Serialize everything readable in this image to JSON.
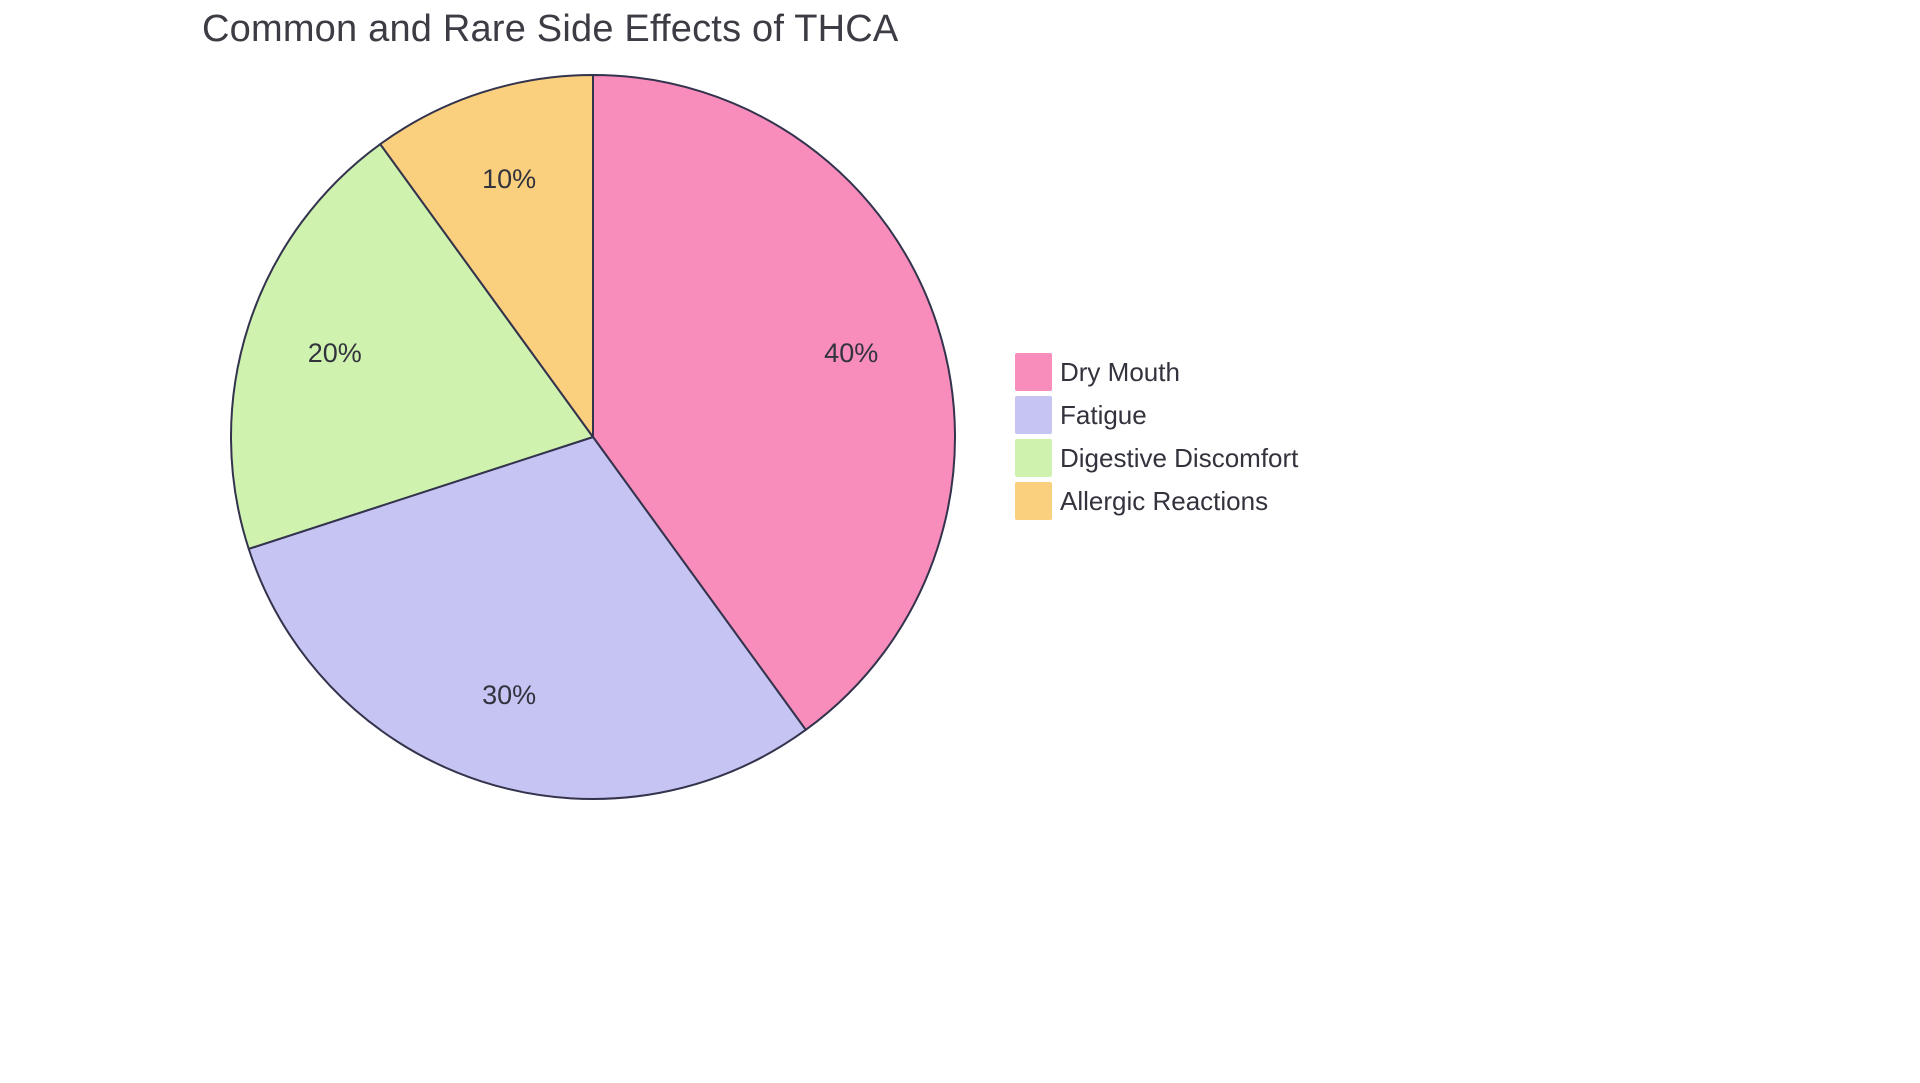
{
  "chart_data": {
    "type": "pie",
    "title": "Common and Rare Side Effects of THCA",
    "labels": [
      "Dry Mouth",
      "Fatigue",
      "Digestive Discomfort",
      "Allergic Reactions"
    ],
    "values": [
      40,
      30,
      20,
      10
    ],
    "percent_labels": [
      "40%",
      "30%",
      "20%",
      "10%"
    ],
    "colors": [
      "#F88DBB",
      "#C6C4F2",
      "#CFF2AF",
      "#FAD07E"
    ],
    "slice_border_color": "#33334D",
    "text_color": "#33333E",
    "legend_position": "right",
    "start_angle_deg": 0,
    "direction": "clockwise",
    "label_radius_ratio": 0.75
  }
}
